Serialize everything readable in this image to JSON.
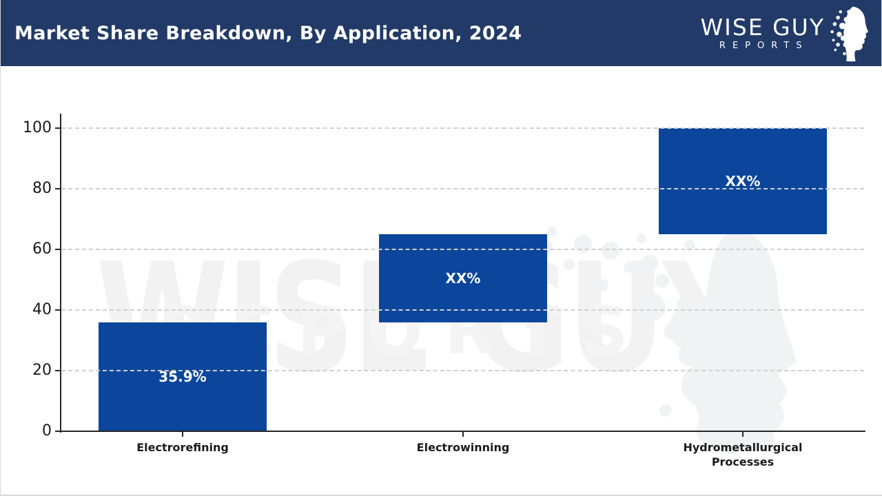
{
  "header": {
    "title": "Market Share Breakdown, By Application, 2024",
    "bg_color": "#213a68",
    "logo": {
      "brand_line1": "WISE GUY",
      "brand_line2": "REPORTS",
      "face_icon": "face-profile-dots-icon"
    }
  },
  "watermark": {
    "line1": "WISE GUY",
    "line2": "REPORTS"
  },
  "chart_data": {
    "type": "bar",
    "variant": "waterfall",
    "title": "Market Share Breakdown, By Application, 2024",
    "categories": [
      "Electrorefining",
      "Electrowinning",
      "Hydrometallurgical Processes"
    ],
    "segments": [
      {
        "category": "Electrorefining",
        "start": 0,
        "end": 35.9,
        "label": "35.9%"
      },
      {
        "category": "Electrowinning",
        "start": 35.9,
        "end": 65,
        "label": "XX%"
      },
      {
        "category": "Hydrometallurgical Processes",
        "start": 65,
        "end": 100,
        "label": "XX%"
      }
    ],
    "ylim": [
      0,
      100
    ],
    "yticks": [
      0,
      20,
      40,
      60,
      80,
      100
    ],
    "xlabel": "",
    "ylabel": "",
    "grid": {
      "horizontal": true,
      "style": "dashed",
      "above_bars": true
    },
    "legend": "none",
    "colors": {
      "bar": "#0b469c",
      "bar_label": "#ffffff",
      "grid": "#cfcfcf",
      "axis": "#262626",
      "tick_text": "#1a1a1a"
    }
  }
}
